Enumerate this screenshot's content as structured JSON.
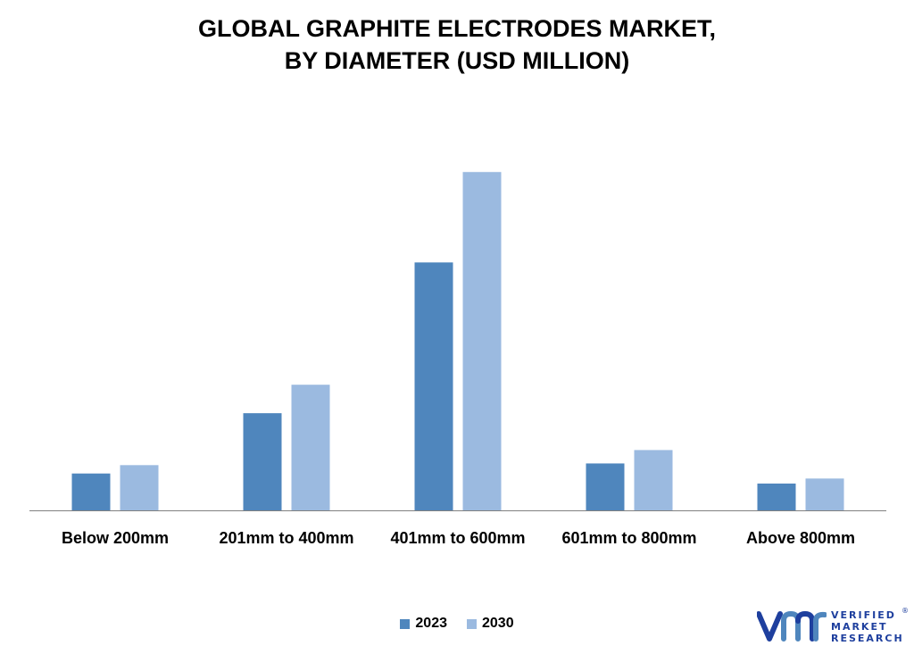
{
  "title_line1": "GLOBAL GRAPHITE ELECTRODES MARKET,",
  "title_line2": "BY DIAMETER (USD MILLION)",
  "colors": {
    "series_2023": "#4f86bd",
    "series_2030": "#9bbae0",
    "axis": "#808080",
    "brand": "#1e3f9e"
  },
  "chart_data": {
    "type": "bar",
    "categories": [
      "Below 200mm",
      "201mm to 400mm",
      "401mm to 600mm",
      "601mm to 800mm",
      "Above 800mm"
    ],
    "series": [
      {
        "name": "2023",
        "values": [
          11,
          29,
          74,
          14,
          8
        ]
      },
      {
        "name": "2030",
        "values": [
          13.5,
          37.5,
          101,
          18,
          9.5
        ]
      }
    ],
    "ylim": [
      0,
      110
    ],
    "y_axis_visible": false,
    "grid": false,
    "legend_position": "bottom-center"
  },
  "logo": {
    "line1": "VERIFIED",
    "line2": "MARKET",
    "line3": "RESEARCH",
    "registered": "®",
    "mark_icon": "vmr-logo-mark"
  }
}
